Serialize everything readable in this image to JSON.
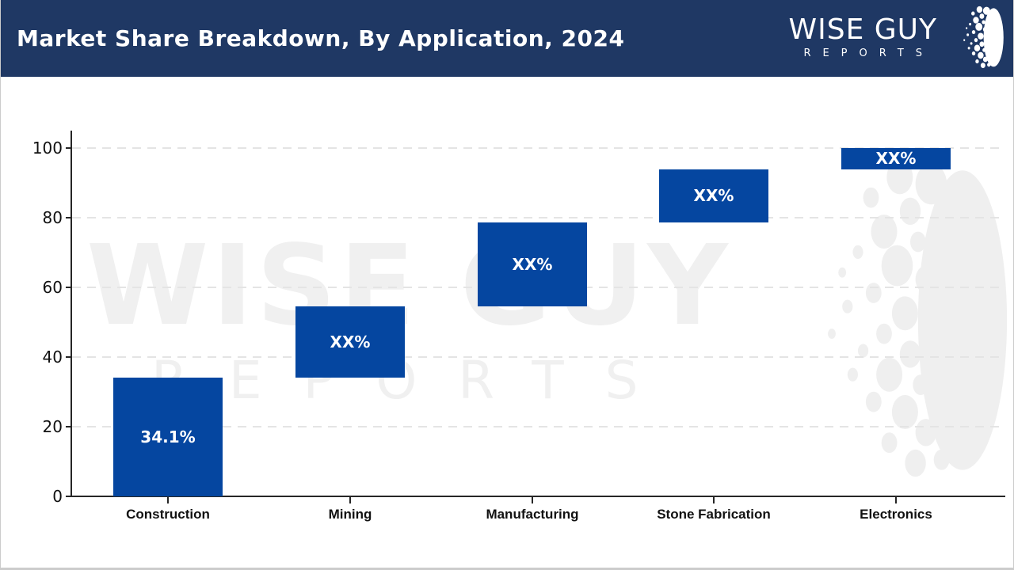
{
  "header": {
    "title": "Market Share Breakdown, By Application, 2024",
    "logo": {
      "line1": "WISE GUY",
      "line2": "REPORTS"
    }
  },
  "watermark": {
    "line1": "WISE GUY",
    "line2": "REPORTS"
  },
  "chart_data": {
    "type": "bar",
    "variant": "waterfall (stacked percentage breakdown)",
    "title": "Market Share Breakdown, By Application, 2024",
    "categories": [
      "Construction",
      "Mining",
      "Manufacturing",
      "Stone Fabrication",
      "Electronics"
    ],
    "segments": [
      {
        "category": "Construction",
        "start": 0,
        "end": 34.1,
        "value_label": "34.1%"
      },
      {
        "category": "Mining",
        "start": 34.1,
        "end": 54.5,
        "value_label": "XX%"
      },
      {
        "category": "Manufacturing",
        "start": 54.5,
        "end": 78.7,
        "value_label": "XX%"
      },
      {
        "category": "Stone Fabrication",
        "start": 78.7,
        "end": 93.9,
        "value_label": "XX%"
      },
      {
        "category": "Electronics",
        "start": 93.9,
        "end": 100,
        "value_label": "XX%"
      }
    ],
    "y_ticks": [
      0,
      20,
      40,
      60,
      80,
      100
    ],
    "ylim": [
      0,
      105
    ],
    "xlabel": "",
    "ylabel": "",
    "grid": "horizontal-dashed",
    "legend": "none",
    "bar_color": "#0546a0",
    "bar_label_color": "#ffffff"
  },
  "colors": {
    "header_bg": "#1f3864",
    "bar": "#0546a0",
    "grid": "#e4e4e4",
    "axis": "#262626",
    "watermark": "#f0f0f0"
  }
}
